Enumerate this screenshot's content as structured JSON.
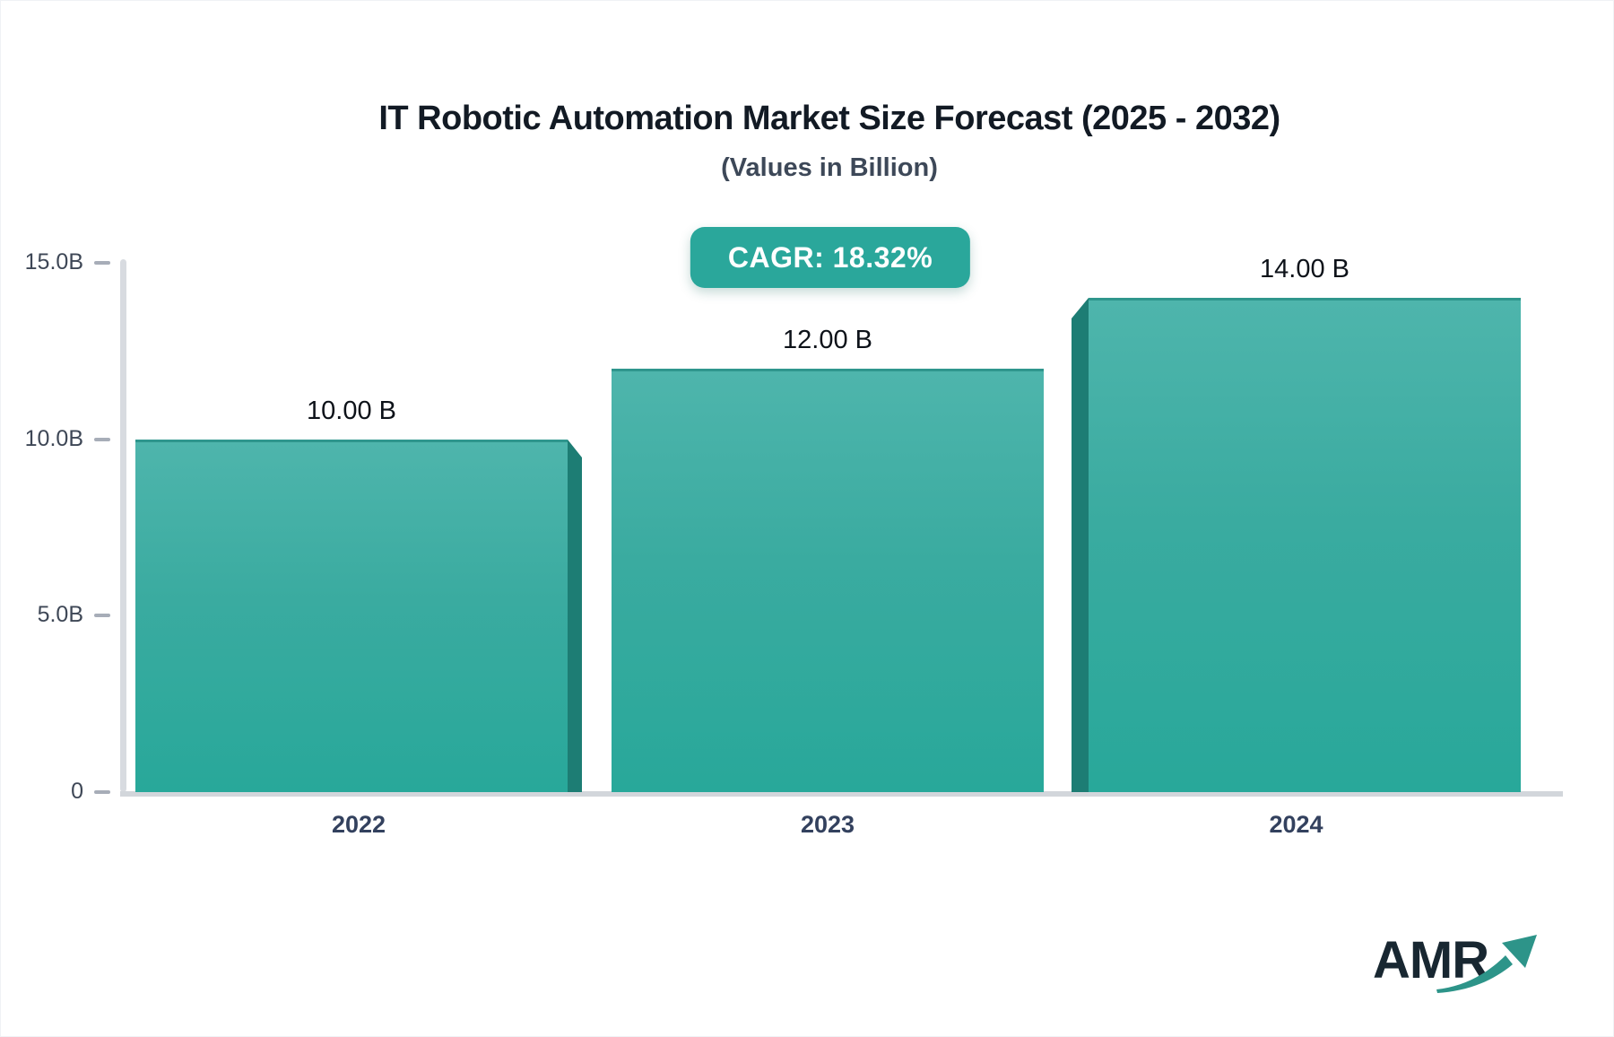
{
  "header": {
    "title": "IT Robotic Automation Market Size Forecast (2025 - 2032)",
    "subtitle": "(Values in Billion)",
    "badge_label": "CAGR: 18.32%"
  },
  "logo": {
    "text": "AMR"
  },
  "colors": {
    "accent_teal": "#2aa79b",
    "bar_top": "#4eb5ac",
    "bar_bottom": "#28a89a",
    "bar_side_dark": "#1d7d74",
    "axis_gray": "#d2d6db",
    "badge_text": "#ffffff"
  },
  "chart_data": {
    "type": "bar",
    "title": "IT Robotic Automation Market Size Forecast (2025 - 2032)",
    "subtitle": "(Values in Billion)",
    "badge": "CAGR: 18.32%",
    "categories": [
      "2022",
      "2023",
      "2024"
    ],
    "values": [
      10,
      12,
      14
    ],
    "value_labels": [
      "10.00 B",
      "12.00 B",
      "14.00 B"
    ],
    "unit": "Billion",
    "xlabel": "",
    "ylabel": "",
    "ylim": [
      0,
      15
    ],
    "yticks": [
      {
        "value": 15,
        "label": "15.0B"
      },
      {
        "value": 10,
        "label": "10.0B"
      },
      {
        "value": 5,
        "label": "5.0B"
      },
      {
        "value": 0,
        "label": "0"
      }
    ],
    "grid": false,
    "legend": false,
    "bar_style": "3d-extruded, outer bars beveled toward center"
  }
}
